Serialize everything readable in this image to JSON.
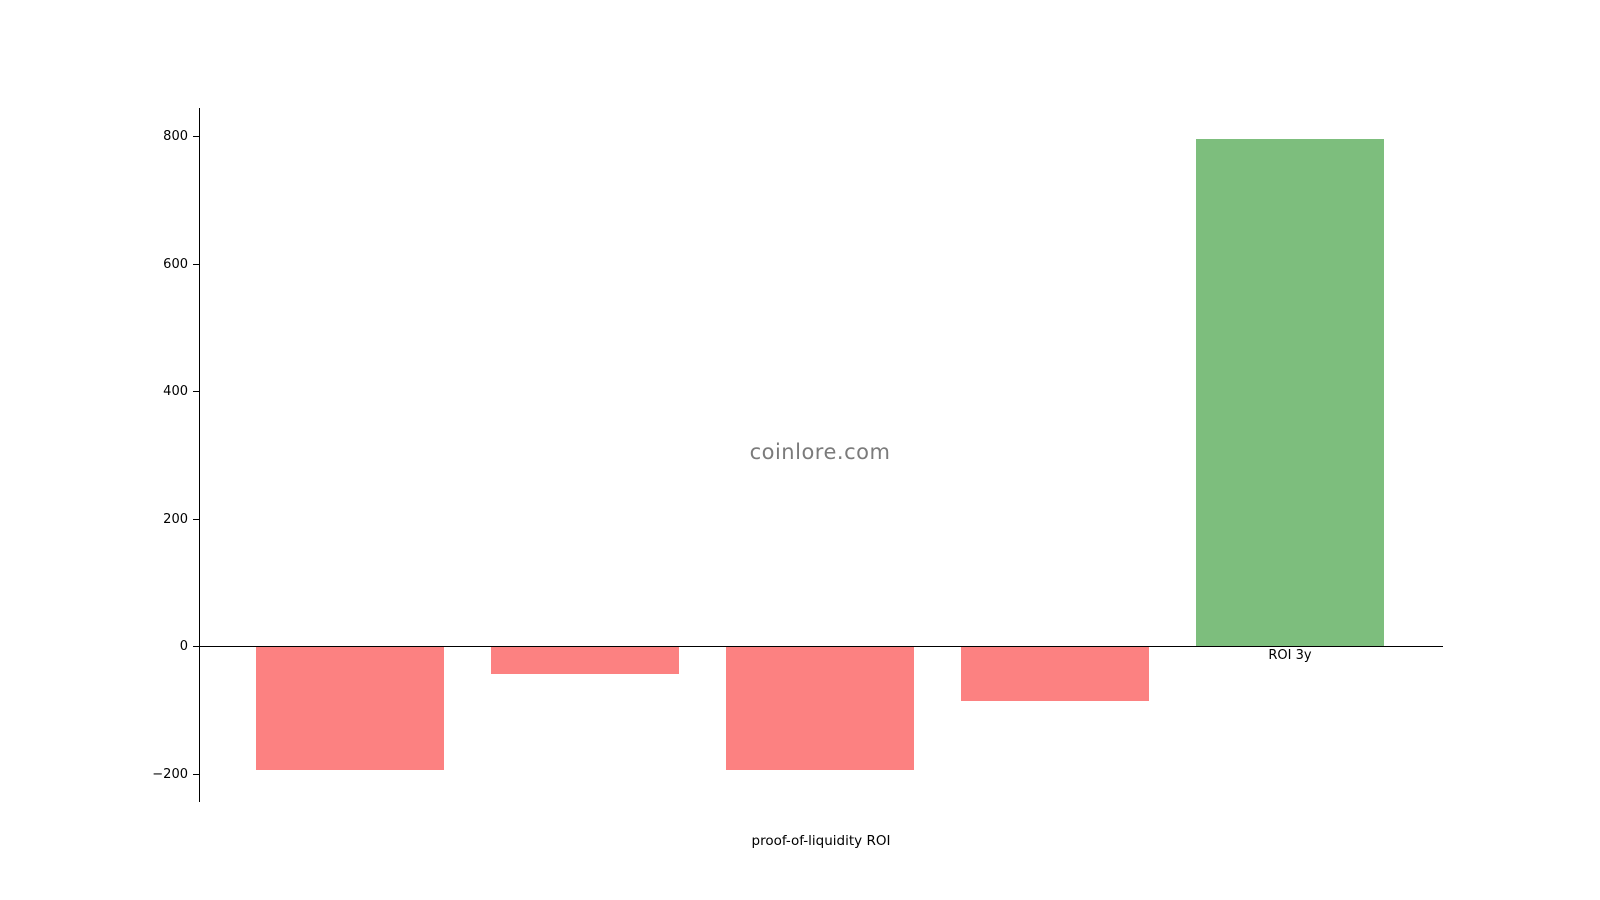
{
  "watermark": {
    "text": "coinlore.com",
    "color": "#7b7b7b"
  },
  "chart_data": {
    "type": "bar",
    "title": "",
    "xlabel": "proof-of-liquidity ROI",
    "ylabel": "",
    "categories": [
      "",
      "",
      "",
      "",
      "ROI 3y"
    ],
    "values": [
      -193,
      -42,
      -193,
      -85,
      795
    ],
    "y_ticks": [
      800,
      600,
      400,
      200,
      0,
      -200
    ],
    "y_tick_labels": [
      "800",
      "600",
      "400",
      "200",
      "0",
      "−200"
    ],
    "ylim": [
      -245,
      845
    ],
    "grid": false,
    "legend": false,
    "colors": {
      "negative": "#fc8181",
      "positive": "#7dbe7d"
    }
  }
}
